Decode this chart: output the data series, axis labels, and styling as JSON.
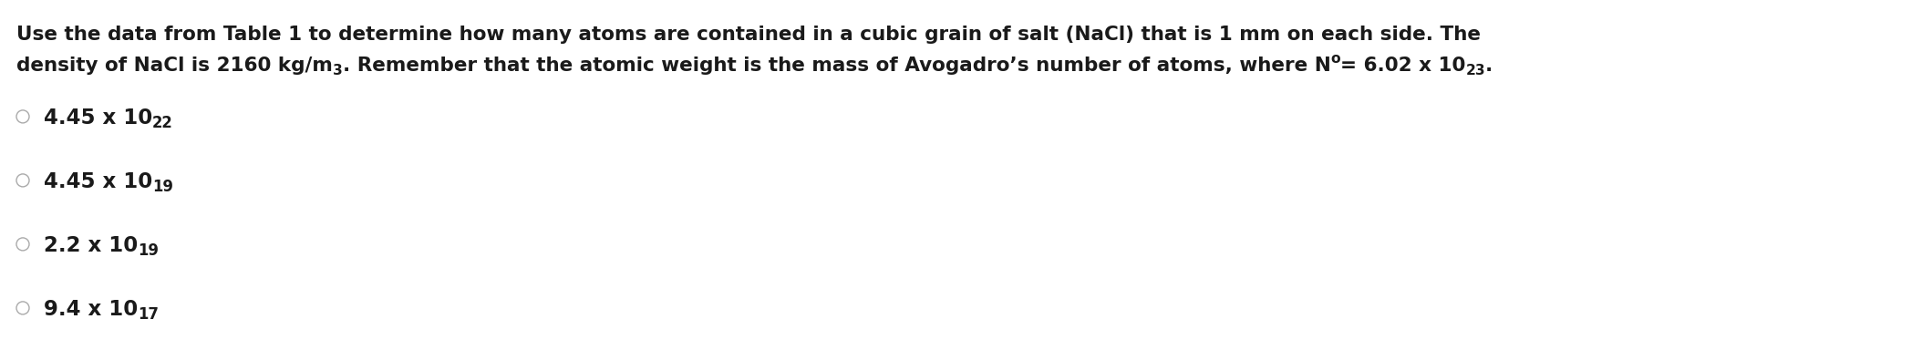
{
  "background_color": "#ffffff",
  "title_line1": "Use the data from Table 1 to determine how many atoms are contained in a cubic grain of salt (NaCl) that is 1 mm on each side. The",
  "title_line2_part1": "density of NaCl is 2160 kg/m",
  "title_line2_exp1": "3",
  "title_line2_part2": ". Remember that the atomic weight is the mass of Avogadro’s number of atoms, where N",
  "title_line2_sub": "o",
  "title_line2_part3": "= 6.02 x 10",
  "title_line2_exp2": "23",
  "title_line2_end": ".",
  "options": [
    {
      "text": "4.45 x 10",
      "exp": "22"
    },
    {
      "text": "4.45 x 10",
      "exp": "19"
    },
    {
      "text": "2.2 x 10",
      "exp": "19"
    },
    {
      "text": "9.4 x 10",
      "exp": "17"
    }
  ],
  "font_color": "#1a1a1a",
  "title_fontsize": 15.5,
  "option_fontsize": 16.5,
  "radio_color": "#aaaaaa",
  "figsize": [
    21.08,
    3.84
  ],
  "dpi": 100
}
